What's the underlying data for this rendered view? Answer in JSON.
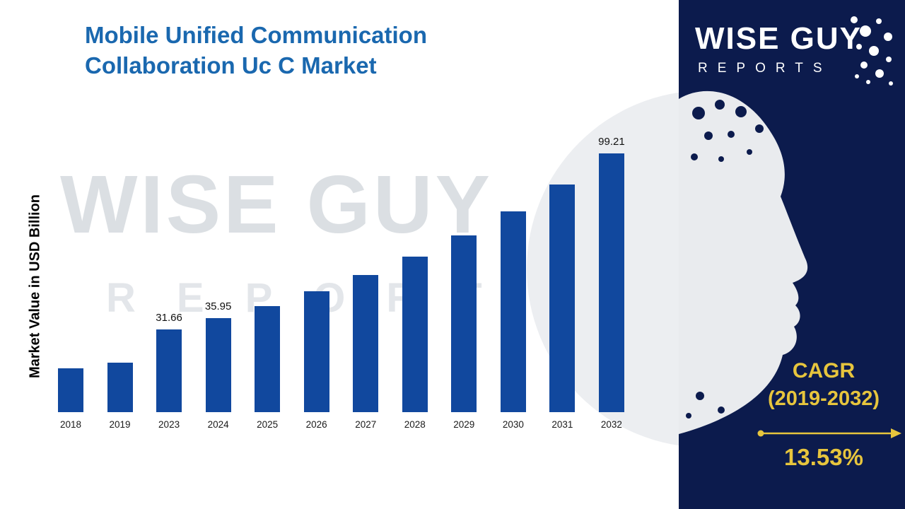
{
  "header": {
    "title_line1": "Mobile Unified Communication",
    "title_line2": "Collaboration Uc C Market"
  },
  "watermark": {
    "line1": "WISE GUY",
    "line2": "REPORT"
  },
  "brand": {
    "name_line": "WISE GUY",
    "reports_line": "REPORTS",
    "panel_color": "#0c1b4d",
    "accent_color": "#e7c53d"
  },
  "cagr": {
    "label": "CAGR",
    "range": "(2019-2032)",
    "value": "13.53%"
  },
  "chart_data": {
    "type": "bar",
    "title": "Mobile Unified Communication Collaboration Uc C Market",
    "xlabel": "",
    "ylabel": "Market Value in USD Billion",
    "categories": [
      "2018",
      "2019",
      "2023",
      "2024",
      "2025",
      "2026",
      "2027",
      "2028",
      "2029",
      "2030",
      "2031",
      "2032"
    ],
    "values": [
      16.79,
      19.06,
      31.66,
      35.95,
      40.81,
      46.34,
      52.61,
      59.73,
      67.81,
      76.99,
      87.4,
      99.21
    ],
    "data_labels": [
      "",
      "",
      "31.66",
      "35.95",
      "",
      "",
      "",
      "",
      "",
      "",
      "",
      "99.21"
    ],
    "ylim": [
      0,
      105
    ],
    "bar_color": "#11489e",
    "grid": false,
    "legend": false
  }
}
